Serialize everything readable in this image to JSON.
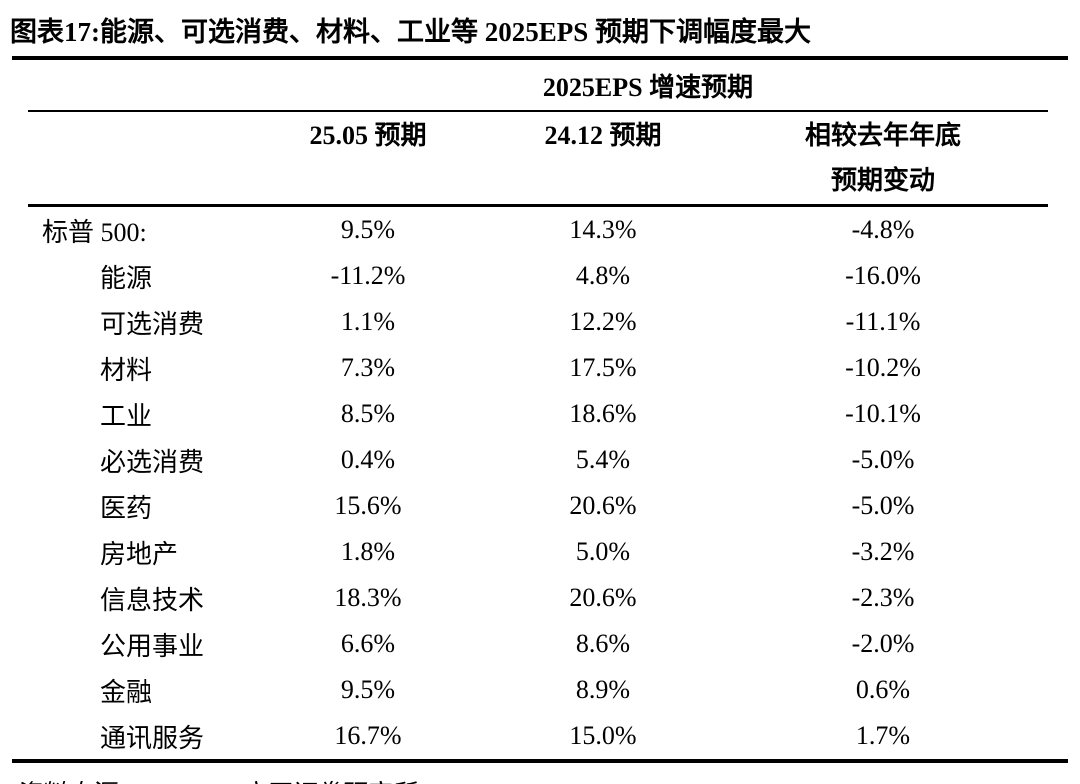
{
  "page": {
    "title": "图表17:能源、可选消费、材料、工业等 2025EPS 预期下调幅度最大",
    "source_note": "资料来源:Bloomberg,方正证券研究所"
  },
  "table": {
    "group_header": "2025EPS 增速预期",
    "columns": {
      "col1": "25.05 预期",
      "col2": "24.12 预期",
      "col3_line1": "相较去年年底",
      "col3_line2": "预期变动"
    },
    "rows": [
      {
        "label": "标普 500:",
        "indent": false,
        "values": [
          "9.5%",
          "14.3%",
          "-4.8%"
        ]
      },
      {
        "label": "能源",
        "indent": true,
        "values": [
          "-11.2%",
          "4.8%",
          "-16.0%"
        ]
      },
      {
        "label": "可选消费",
        "indent": true,
        "values": [
          "1.1%",
          "12.2%",
          "-11.1%"
        ]
      },
      {
        "label": "材料",
        "indent": true,
        "values": [
          "7.3%",
          "17.5%",
          "-10.2%"
        ]
      },
      {
        "label": "工业",
        "indent": true,
        "values": [
          "8.5%",
          "18.6%",
          "-10.1%"
        ]
      },
      {
        "label": "必选消费",
        "indent": true,
        "values": [
          "0.4%",
          "5.4%",
          "-5.0%"
        ]
      },
      {
        "label": "医药",
        "indent": true,
        "values": [
          "15.6%",
          "20.6%",
          "-5.0%"
        ]
      },
      {
        "label": "房地产",
        "indent": true,
        "values": [
          "1.8%",
          "5.0%",
          "-3.2%"
        ]
      },
      {
        "label": "信息技术",
        "indent": true,
        "values": [
          "18.3%",
          "20.6%",
          "-2.3%"
        ]
      },
      {
        "label": "公用事业",
        "indent": true,
        "values": [
          "6.6%",
          "8.6%",
          "-2.0%"
        ]
      },
      {
        "label": "金融",
        "indent": true,
        "values": [
          "9.5%",
          "8.9%",
          "0.6%"
        ]
      },
      {
        "label": "通讯服务",
        "indent": true,
        "values": [
          "16.7%",
          "15.0%",
          "1.7%"
        ]
      }
    ]
  },
  "chart_data": {
    "type": "table",
    "title": "2025EPS 增速预期",
    "figure_caption": "图表17:能源、可选消费、材料、工业等 2025EPS 预期下调幅度最大",
    "columns": [
      "",
      "25.05 预期",
      "24.12 预期",
      "相较去年年底 预期变动"
    ],
    "rows": [
      [
        "标普 500:",
        "9.5%",
        "14.3%",
        "-4.8%"
      ],
      [
        "能源",
        "-11.2%",
        "4.8%",
        "-16.0%"
      ],
      [
        "可选消费",
        "1.1%",
        "12.2%",
        "-11.1%"
      ],
      [
        "材料",
        "7.3%",
        "17.5%",
        "-10.2%"
      ],
      [
        "工业",
        "8.5%",
        "18.6%",
        "-10.1%"
      ],
      [
        "必选消费",
        "0.4%",
        "5.4%",
        "-5.0%"
      ],
      [
        "医药",
        "15.6%",
        "20.6%",
        "-5.0%"
      ],
      [
        "房地产",
        "1.8%",
        "5.0%",
        "-3.2%"
      ],
      [
        "信息技术",
        "18.3%",
        "20.6%",
        "-2.3%"
      ],
      [
        "公用事业",
        "6.6%",
        "8.6%",
        "-2.0%"
      ],
      [
        "金融",
        "9.5%",
        "8.9%",
        "0.6%"
      ],
      [
        "通讯服务",
        "16.7%",
        "15.0%",
        "1.7%"
      ]
    ],
    "series_percent": {
      "labels": [
        "标普500",
        "能源",
        "可选消费",
        "材料",
        "工业",
        "必选消费",
        "医药",
        "房地产",
        "信息技术",
        "公用事业",
        "金融",
        "通讯服务"
      ],
      "forecast_2505": [
        9.5,
        -11.2,
        1.1,
        7.3,
        8.5,
        0.4,
        15.6,
        1.8,
        18.3,
        6.6,
        9.5,
        16.7
      ],
      "forecast_2412": [
        14.3,
        4.8,
        12.2,
        17.5,
        18.6,
        5.4,
        20.6,
        5.0,
        20.6,
        8.6,
        8.9,
        15.0
      ],
      "change_vs_year_end": [
        -4.8,
        -16.0,
        -11.1,
        -10.2,
        -10.1,
        -5.0,
        -5.0,
        -3.2,
        -2.3,
        -2.0,
        0.6,
        1.7
      ]
    },
    "source": "资料来源:Bloomberg,方正证券研究所"
  }
}
